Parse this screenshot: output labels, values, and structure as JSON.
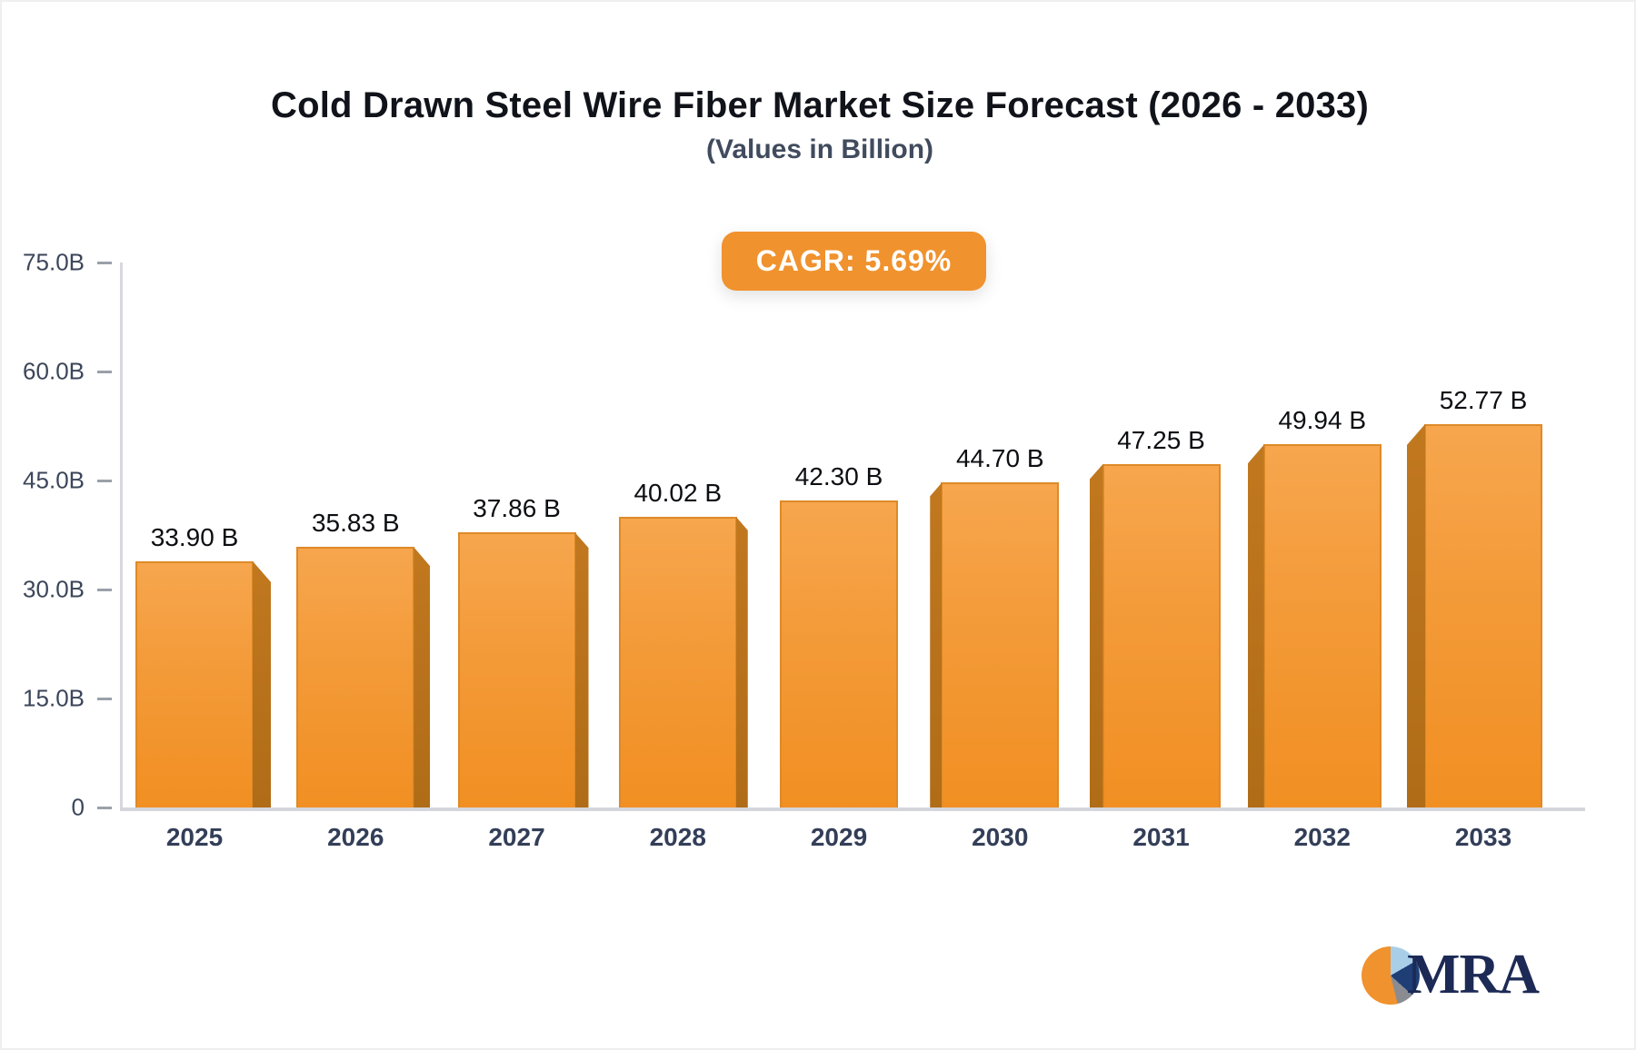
{
  "title": "Cold Drawn Steel Wire Fiber Market Size Forecast (2026 - 2033)",
  "subtitle": "(Values in Billion)",
  "badge": {
    "label": "CAGR: 5.69%",
    "bg_color": "#F0922D",
    "text_color": "#FFFFFF"
  },
  "logo": {
    "text": "MRA",
    "pie_colors": {
      "orange": "#F0922D",
      "light_blue": "#A9CFE8",
      "navy": "#1E3E75",
      "gray": "#8A8C92"
    }
  },
  "chart_data": {
    "type": "bar",
    "title": "Cold Drawn Steel Wire Fiber Market Size Forecast (2026 - 2033)",
    "subtitle": "(Values in Billion)",
    "annotation": "CAGR: 5.69%",
    "categories": [
      "2025",
      "2026",
      "2027",
      "2028",
      "2029",
      "2030",
      "2031",
      "2032",
      "2033"
    ],
    "values": [
      33.9,
      35.83,
      37.86,
      40.02,
      42.3,
      44.7,
      47.25,
      49.94,
      52.77
    ],
    "value_labels": [
      "33.90 B",
      "35.83 B",
      "37.86 B",
      "40.02 B",
      "42.30 B",
      "44.70 B",
      "47.25 B",
      "49.94 B",
      "52.77 B"
    ],
    "xlabel": "",
    "ylabel": "",
    "ylim": [
      0,
      75
    ],
    "yticks": [
      {
        "value": 0,
        "label": "0"
      },
      {
        "value": 15,
        "label": "15.0B"
      },
      {
        "value": 30,
        "label": "30.0B"
      },
      {
        "value": 45,
        "label": "45.0B"
      },
      {
        "value": 60,
        "label": "60.0B"
      },
      {
        "value": 75,
        "label": "75.0B"
      }
    ],
    "grid": false,
    "legend": "none",
    "bar_color_top": "#F7A64E",
    "bar_color_bottom": "#F18F22",
    "bar_side_color": "#B26F1D",
    "axis_color": "#D6D8DE",
    "tick_label_color": "#3C465A",
    "category_label_color": "#333E58",
    "value_label_color": "#0C0E12"
  }
}
